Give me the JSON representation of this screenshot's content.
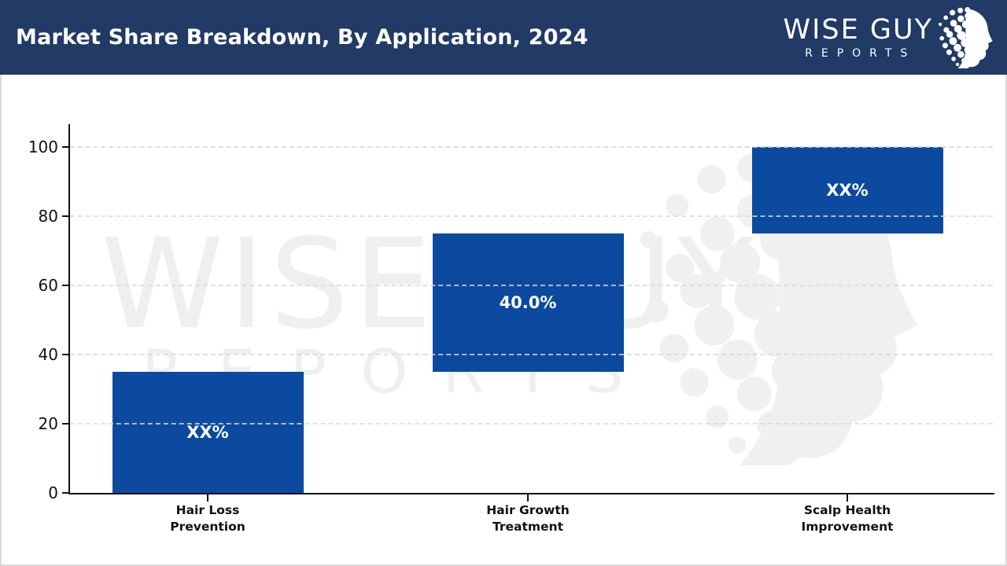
{
  "header": {
    "title": "Market Share Breakdown, By Application, 2024",
    "logo": {
      "wordmark": "WISE GUY",
      "reports": "REPORTS"
    }
  },
  "watermark": {
    "wordmark": "WISE GUY",
    "reports": "REPORTS"
  },
  "colors": {
    "header_bg": "#213a66",
    "title_color": "#ffffff",
    "bar": "#0b4a9f",
    "grid": "#d9d9d9",
    "axis": "#111111",
    "tick_label": "#111111",
    "value_label": "#ffffff",
    "watermark": "#efefef"
  },
  "chart_data": {
    "type": "bar",
    "subtype": "waterfall-stacked",
    "title": "Market Share Breakdown, By Application, 2024",
    "categories": [
      "Hair Loss\nPrevention",
      "Hair Growth\nTreatment",
      "Scalp Health\nImprovement"
    ],
    "segments": [
      {
        "category": "Hair Loss Prevention",
        "start": 0,
        "end": 35,
        "label": "XX%"
      },
      {
        "category": "Hair Growth Treatment",
        "start": 35,
        "end": 75,
        "label": "40.0%"
      },
      {
        "category": "Scalp Health Improvement",
        "start": 75,
        "end": 100,
        "label": "XX%"
      }
    ],
    "xlabel": "",
    "ylabel": "",
    "ylim": [
      0,
      106
    ],
    "yticks": [
      0,
      20,
      40,
      60,
      80,
      100
    ],
    "grid": "horizontal-dashed",
    "legend": null
  }
}
